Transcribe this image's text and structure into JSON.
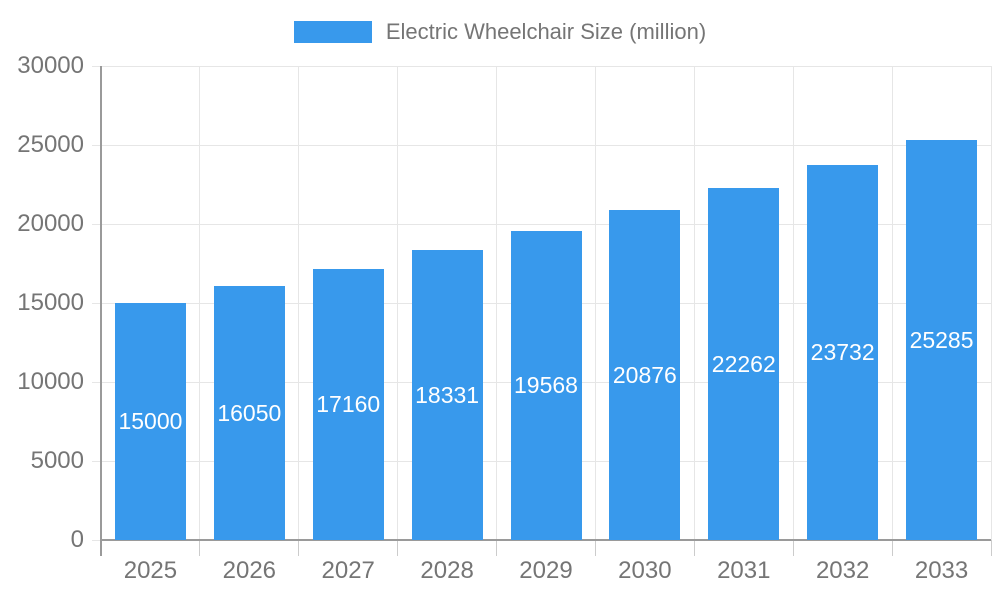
{
  "legend": {
    "label": "Electric Wheelchair Size (million)"
  },
  "colors": {
    "bar": "#3899ec",
    "axis_text": "#757575",
    "grid": "#e6e6e6",
    "axis_line": "#9a9a9a",
    "tick": "#cccccc",
    "bar_label": "#ffffff",
    "background": "#ffffff"
  },
  "chart_data": {
    "type": "bar",
    "title": "Electric Wheelchair Size (million)",
    "categories": [
      "2025",
      "2026",
      "2027",
      "2028",
      "2029",
      "2030",
      "2031",
      "2032",
      "2033"
    ],
    "series": [
      {
        "name": "Electric Wheelchair Size (million)",
        "values": [
          15000,
          16050,
          17160,
          18331,
          19568,
          20876,
          22262,
          23732,
          25285
        ]
      }
    ],
    "xlabel": "",
    "ylabel": "",
    "ylim": [
      0,
      30000
    ],
    "ytick_step": 5000,
    "ytick_labels": [
      "0",
      "5000",
      "10000",
      "15000",
      "20000",
      "25000",
      "30000"
    ],
    "grid": true,
    "legend_position": "top-center",
    "value_labels": "inside-center-white"
  }
}
